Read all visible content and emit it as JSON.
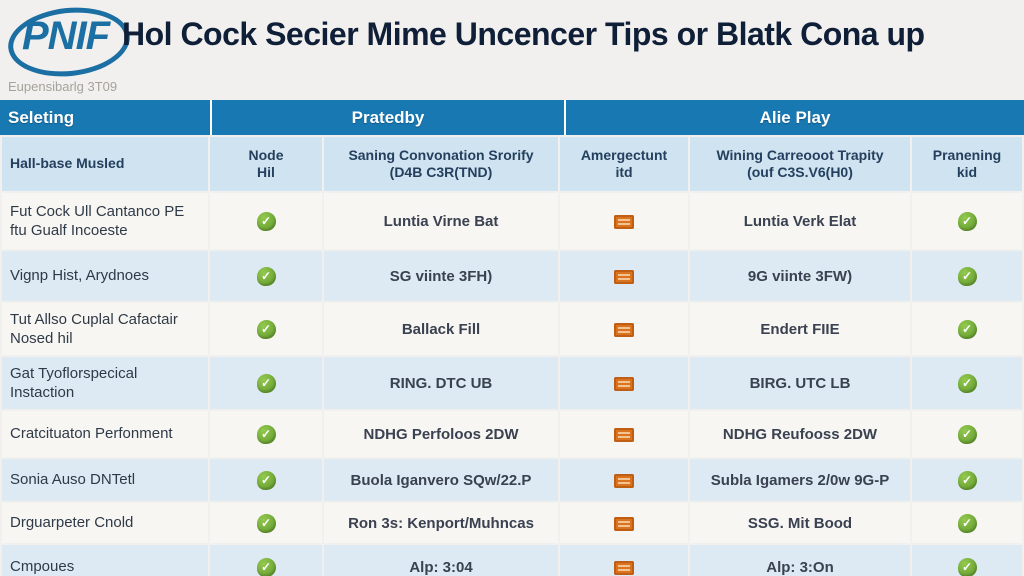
{
  "page": {
    "logo_text": "PNIF",
    "title": "Hol Cock Secier Mime Uncencer Tips or Blatk Cona up",
    "subtitle": "Eupensibarlg 3T09"
  },
  "band": {
    "seg1": "Seleting",
    "seg2": "Pratedby",
    "seg3": "Alie Play"
  },
  "table": {
    "columns": [
      "Hall-base Musled",
      "Node\nHil",
      "Saning Convonation Srorify\n(D4B C3R(TND)",
      "Amergectunt\nitd",
      "Wining Carreooot Trapity\n(ouf C3S.V6(H0)",
      "Pranening\nkid"
    ],
    "rows": [
      {
        "feature": "Fut Cock Ull Cantanco PE\nftu Gualf Incoeste",
        "saning": "Luntia Virne Bat",
        "wining": "Luntia Verk Elat"
      },
      {
        "feature": "Vignp Hist, Arydnoes",
        "saning": "SG viinte 3FH)",
        "wining": "9G viinte 3FW)"
      },
      {
        "feature": "Tut Allso Cuplal Cafactair\nNosed hil",
        "saning": "Ballack Fill",
        "wining": "Endert FIIE"
      },
      {
        "feature": "Gat Tyoflorspecical\nInstaction",
        "saning": "RING. DTC UB",
        "wining": "BIRG. UTC LB"
      },
      {
        "feature": "Cratcituaton Perfonment",
        "saning": "NDHG Perfoloos 2DW",
        "wining": "NDHG Reufooss 2DW"
      },
      {
        "feature": "Sonia Auso DNTetl",
        "saning": "Buola Iganvero SQw/22.P",
        "wining": "Subla Igamers 2/0w 9G-P"
      },
      {
        "feature": "Drguarpeter Cnold",
        "saning": "Ron 3s: Kenport/Muhncas",
        "wining": "SSG. Mit Bood"
      },
      {
        "feature": "Cmpoues",
        "saning": "Alp: 3:04",
        "wining": "Alp: 3:On"
      }
    ]
  },
  "icons": {
    "check_glyph": "✓"
  },
  "colors": {
    "band_blue": "#1878b2",
    "header_row_blue": "#cfe3f0",
    "alt_row_blue": "#ddeaf3",
    "row_white": "#f7f6f3",
    "check_green": "#74b043",
    "flag_orange": "#d9731f",
    "title_navy": "#101f38",
    "logo_blue": "#1b6fa3"
  }
}
